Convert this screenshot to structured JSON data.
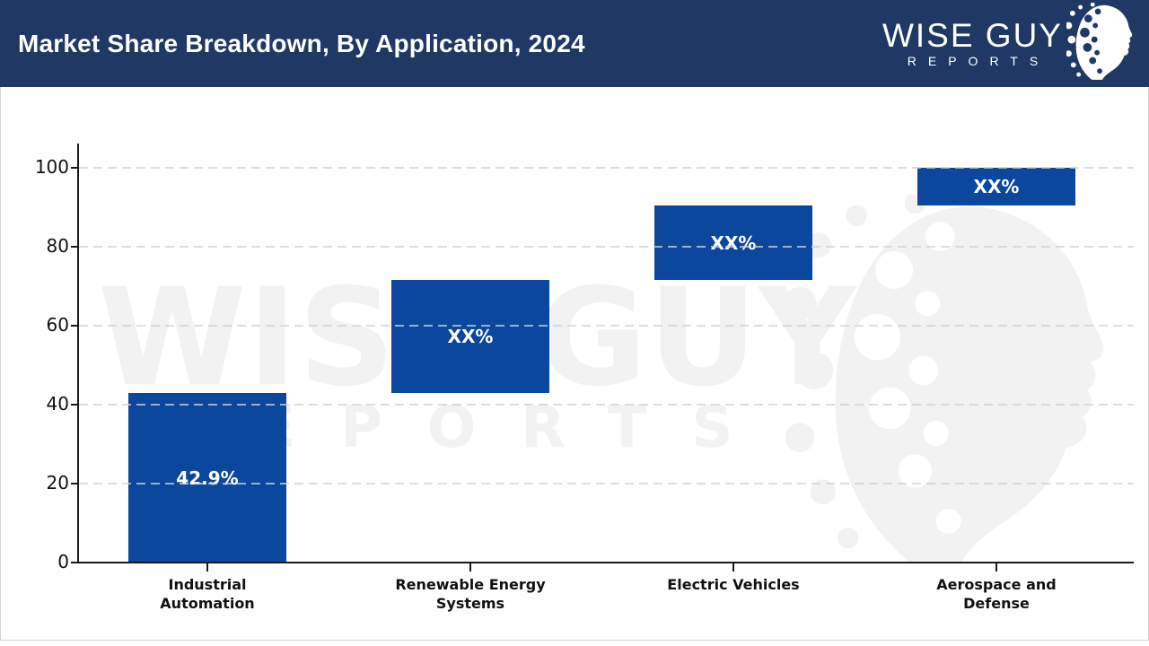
{
  "header": {
    "title": "Market Share Breakdown, By Application, 2024",
    "logo": {
      "line1": "WISE GUY",
      "line2": "REPORTS"
    }
  },
  "watermark": {
    "line1": "WISE GUY",
    "line2": "REPORTS"
  },
  "colors": {
    "header_bg": "#1f3864",
    "bar": "#0b479d",
    "axis": "#1a1a1a",
    "grid_dash": "#d3d8e0",
    "watermark": "#f2f2f2",
    "bar_label": "#ffffff",
    "page_bg": "#ffffff"
  },
  "chart_data": {
    "type": "bar",
    "subtype": "waterfall",
    "title": "Market Share Breakdown, By Application, 2024",
    "categories": [
      "Industrial\nAutomation",
      "Renewable Energy\nSystems",
      "Electric Vehicles",
      "Aerospace and\nDefense"
    ],
    "series": [
      {
        "name": "Market share (%)",
        "segments": [
          {
            "category": "Industrial Automation",
            "label": "42.9%",
            "start": 0,
            "end": 42.9
          },
          {
            "category": "Renewable Energy Systems",
            "label": "XX%",
            "start": 42.9,
            "end": 71.5
          },
          {
            "category": "Electric Vehicles",
            "label": "XX%",
            "start": 71.5,
            "end": 90.5
          },
          {
            "category": "Aerospace and Defense",
            "label": "XX%",
            "start": 90.5,
            "end": 100
          }
        ]
      }
    ],
    "ylim": [
      0,
      100
    ],
    "yticks": [
      0,
      20,
      40,
      60,
      80,
      100
    ],
    "xlabel": "",
    "ylabel": "",
    "grid": "horizontal-dashed",
    "legend": "none"
  }
}
